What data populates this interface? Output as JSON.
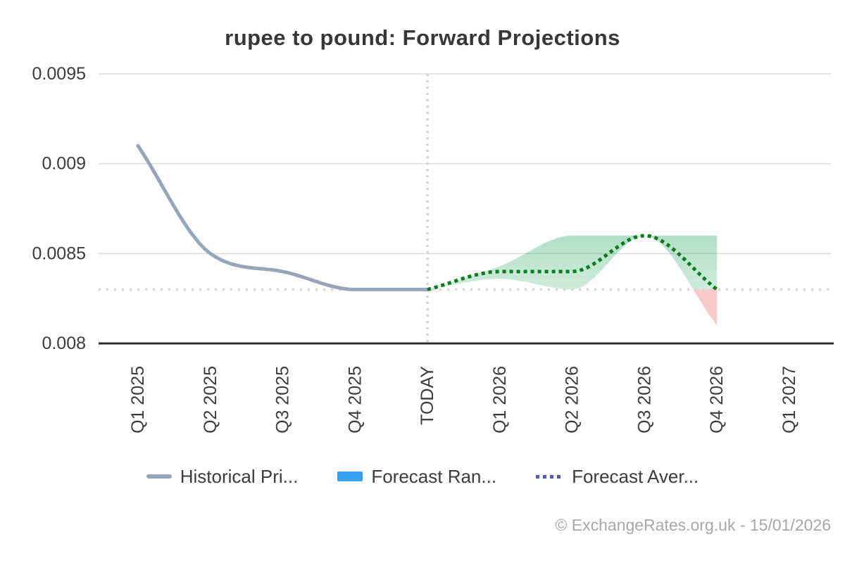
{
  "title": "rupee to pound: Forward Projections",
  "legend": {
    "items": [
      {
        "label": "Historical Pri...",
        "full_name": "Historical Price",
        "swatch": "line",
        "color": "#97a5bb"
      },
      {
        "label": "Forecast Ran...",
        "full_name": "Forecast Range",
        "swatch": "rect",
        "color": "#38a1ef"
      },
      {
        "label": "Forecast Aver...",
        "full_name": "Forecast Average",
        "swatch": "dotted-line",
        "color": "#5559c0"
      }
    ]
  },
  "footer": {
    "copyright": "© ExchangeRates.org.uk - 15/01/2026"
  },
  "chart_data": {
    "type": "line",
    "title": "rupee to pound: Forward Projections",
    "categories": [
      "Q1 2025",
      "Q2 2025",
      "Q3 2025",
      "Q4 2025",
      "TODAY",
      "Q1 2026",
      "Q2 2026",
      "Q3 2026",
      "Q4 2026",
      "Q1 2027"
    ],
    "ylim": [
      0.008,
      0.0095
    ],
    "yticks": [
      0.0095,
      0.009,
      0.0085,
      0.008
    ],
    "ytick_labels": [
      "0.0095",
      "0.009",
      "0.0085",
      "0.008"
    ],
    "grid": true,
    "today_index": 4,
    "reference_level": 0.0083,
    "legend_position": "bottom",
    "series": [
      {
        "name": "Historical Price",
        "type": "line",
        "x_index": [
          0,
          1,
          2,
          3,
          4
        ],
        "values": [
          0.0091,
          0.0085,
          0.0084,
          0.0083,
          0.0083
        ],
        "color": "#97a5bb",
        "line_style": "solid"
      },
      {
        "name": "Forecast Average",
        "type": "line",
        "x_index": [
          4,
          5,
          6,
          7,
          8
        ],
        "values": [
          0.0083,
          0.0084,
          0.0084,
          0.0086,
          0.0083
        ],
        "color": "#0c7c1e",
        "line_style": "dotted"
      },
      {
        "name": "Forecast Range",
        "type": "band",
        "x_index": [
          4,
          5,
          6,
          7,
          8
        ],
        "upper": [
          0.0083,
          0.00843,
          0.0086,
          0.0086,
          0.0086
        ],
        "lower": [
          0.0083,
          0.00836,
          0.0083,
          0.0086,
          0.0081
        ],
        "fill_above_reference": "#1aa058",
        "fill_below_reference": "#ec5050"
      }
    ]
  },
  "colors": {
    "grid_line": "#dcdcdc",
    "axis_line": "#2f2f2f",
    "today_line": "#cfcfcf",
    "reference_line": "#d5d5d5",
    "tick_label": "#3c3c3c",
    "title": "#373737",
    "legend_label": "#3c3c3c",
    "copyright": "#a8a8a8"
  }
}
